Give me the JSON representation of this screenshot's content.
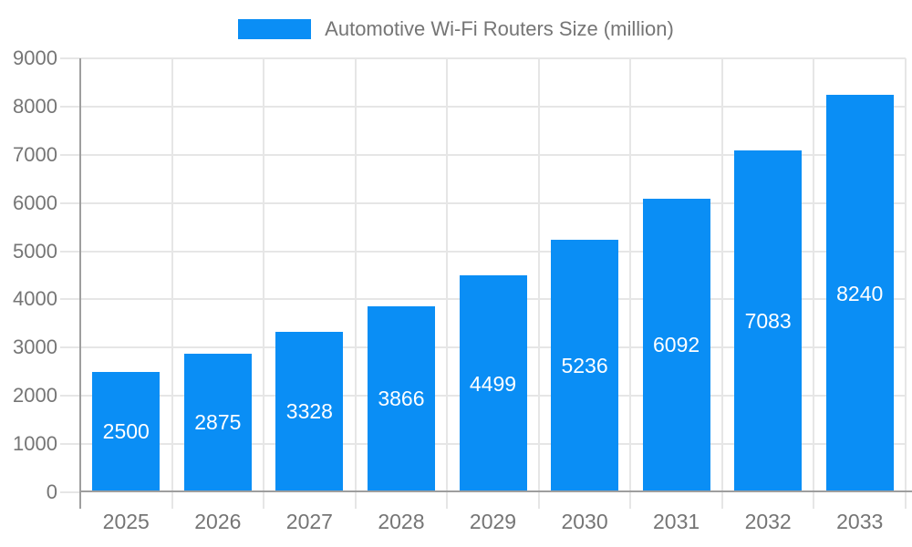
{
  "legend": {
    "label": "Automotive Wi-Fi Routers Size (million)"
  },
  "chart_data": {
    "type": "bar",
    "title": "Automotive Wi-Fi Routers Size (million)",
    "categories": [
      "2025",
      "2026",
      "2027",
      "2028",
      "2029",
      "2030",
      "2031",
      "2032",
      "2033"
    ],
    "values": [
      2500,
      2875,
      3328,
      3866,
      4499,
      5236,
      6092,
      7083,
      8240
    ],
    "xlabel": "",
    "ylabel": "",
    "ylim": [
      0,
      9000
    ],
    "ytick_step": 1000,
    "yticks": [
      0,
      1000,
      2000,
      3000,
      4000,
      5000,
      6000,
      7000,
      8000,
      9000
    ],
    "grid": true,
    "legend_position": "top",
    "value_labels": "centered-inside-bars"
  },
  "colors": {
    "bar": "#0a8ef5",
    "value_label": "#ffffff",
    "axis_line": "#9e9e9e",
    "gridline": "#e6e6e6",
    "label_text": "#757575",
    "background": "#ffffff"
  }
}
